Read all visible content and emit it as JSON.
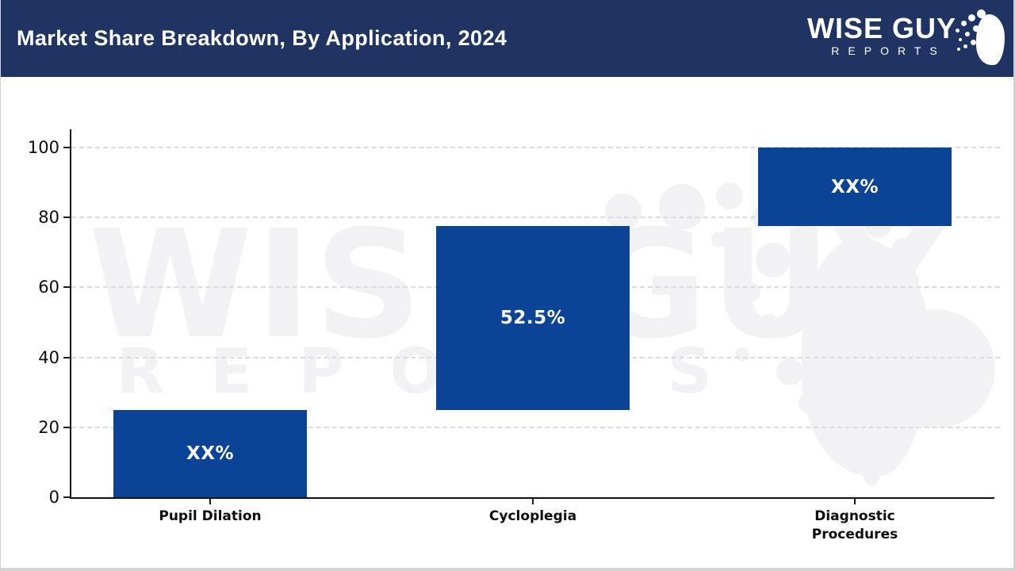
{
  "header": {
    "title": "Market Share Breakdown, By Application, 2024",
    "logo": {
      "line1": "WISE GUY",
      "line2": "REPORTS"
    },
    "bg_color": "#1f3462"
  },
  "watermark": {
    "line1": "WISE GUY",
    "line2": "REPORTS"
  },
  "chart_data": {
    "type": "bar",
    "subtype": "stacked-breakdown-waterfall",
    "title": "Market Share Breakdown, By Application, 2024",
    "categories": [
      "Pupil Dilation",
      "Cycloplegia",
      "Diagnostic Procedures"
    ],
    "segments": [
      {
        "category": "Pupil Dilation",
        "start": 0,
        "end": 25,
        "value": 25,
        "label": "XX%"
      },
      {
        "category": "Cycloplegia",
        "start": 25,
        "end": 77.5,
        "value": 52.5,
        "label": "52.5%"
      },
      {
        "category": "Diagnostic Procedures",
        "start": 77.5,
        "end": 100,
        "value": 22.5,
        "label": "XX%"
      }
    ],
    "values": [
      25,
      52.5,
      22.5
    ],
    "bar_labels": [
      "XX%",
      "52.5%",
      "XX%"
    ],
    "xlabel": "",
    "ylabel": "",
    "ylim": [
      0,
      100
    ],
    "yticks": [
      0,
      20,
      40,
      60,
      80,
      100
    ],
    "grid": "horizontal-dashed",
    "legend": "none",
    "bar_color": "#0b4397"
  }
}
